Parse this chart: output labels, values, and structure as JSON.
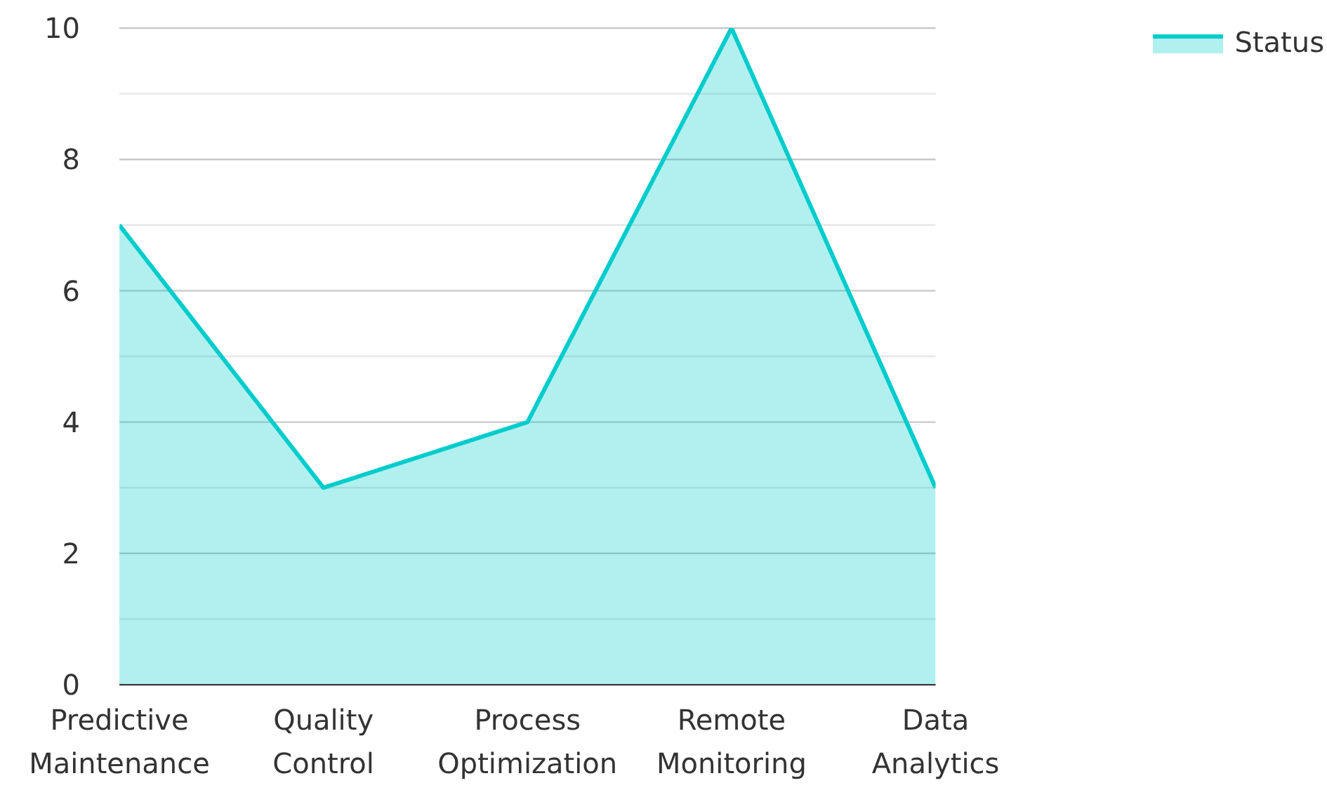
{
  "chart_data": {
    "type": "area",
    "categories": [
      "Predictive Maintenance",
      "Quality Control",
      "Process Optimization",
      "Remote Monitoring",
      "Data Analytics"
    ],
    "series": [
      {
        "name": "Status",
        "color": "#00cccc",
        "values": [
          7,
          3,
          4,
          10,
          3
        ]
      }
    ],
    "ylim": [
      0,
      10
    ],
    "yticks": [
      0,
      {
        "value": 1,
        "label": null
      },
      2,
      {
        "value": 3,
        "label": null
      },
      4,
      {
        "value": 5,
        "label": null
      },
      6,
      {
        "value": 7,
        "label": null
      },
      8,
      {
        "value": 9,
        "label": null
      },
      10
    ],
    "grid": "y",
    "legend": "top right",
    "marker": "none",
    "line_style": "solid"
  }
}
